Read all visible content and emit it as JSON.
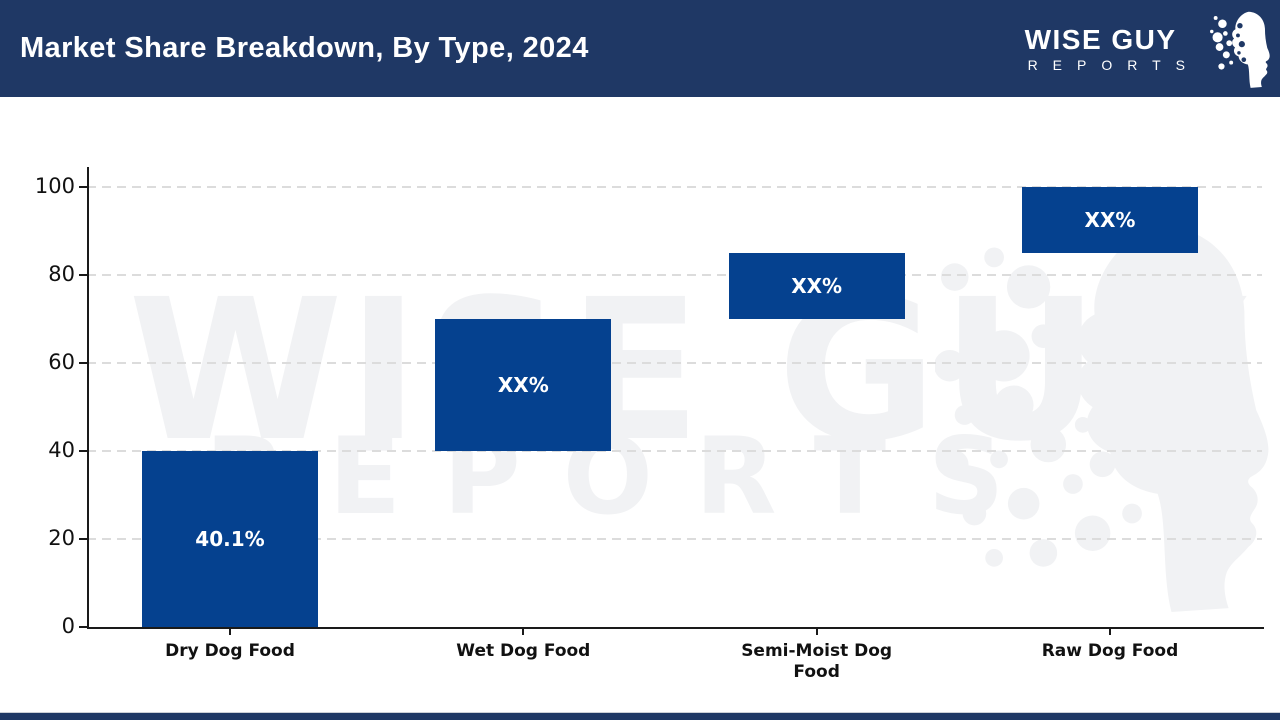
{
  "header": {
    "title": "Market Share Breakdown, By Type, 2024",
    "logo": {
      "wordmark": "WISE GUY",
      "subtext": "REPORTS"
    }
  },
  "watermark": {
    "line1": "WISE GUY",
    "line2": "REPORTS"
  },
  "chart_data": {
    "type": "waterfall-bar",
    "title": "Market Share Breakdown, By Type, 2024",
    "categories": [
      "Dry Dog Food",
      "Wet Dog Food",
      "Semi-Moist Dog Food",
      "Raw Dog Food"
    ],
    "segments": [
      {
        "category": "Dry Dog Food",
        "start": 0,
        "end": 40,
        "label": "40.1%"
      },
      {
        "category": "Wet Dog Food",
        "start": 40,
        "end": 70,
        "label": "XX%"
      },
      {
        "category": "Semi-Moist Dog Food",
        "start": 70,
        "end": 85,
        "label": "XX%"
      },
      {
        "category": "Raw Dog Food",
        "start": 85,
        "end": 100,
        "label": "XX%"
      }
    ],
    "yticks": [
      0,
      20,
      40,
      60,
      80,
      100
    ],
    "ylim": [
      0,
      100
    ],
    "grid": "dashed horizontal",
    "legend": "none",
    "bar_color": "#05418F",
    "label_color": "#ffffff"
  },
  "colors": {
    "header_bg": "#1F3865",
    "bar": "#05418F",
    "label": "#ffffff",
    "grid": "#dcdcdc",
    "axis": "#1a1a1a",
    "watermark": "#f1f2f4"
  }
}
